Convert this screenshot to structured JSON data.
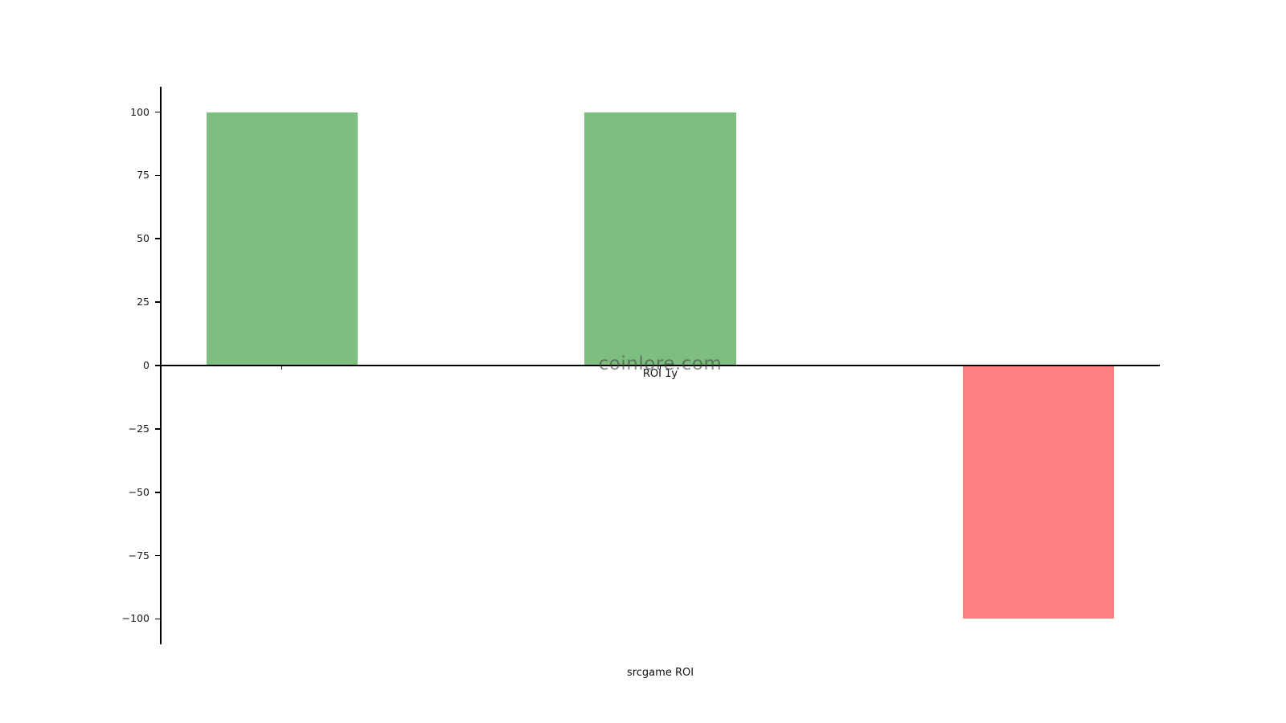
{
  "chart_data": {
    "type": "bar",
    "title": "",
    "xlabel": "srcgame ROI",
    "ylabel": "",
    "watermark": "coinlore.com",
    "categories": [
      "",
      "ROI 1y",
      ""
    ],
    "series": [
      {
        "name": "srcgame ROI",
        "values": [
          100,
          100,
          -100
        ],
        "colors": [
          "#7ebf80",
          "#7ebf80",
          "#ff8080"
        ]
      }
    ],
    "positive_color": "#7ebf80",
    "negative_color": "#ff8080",
    "axis_color": "#000000",
    "tick_text_color": "#1a1a1a",
    "watermark_color": "#464646",
    "yticks": [
      {
        "value": 100,
        "label": "100"
      },
      {
        "value": 75,
        "label": "75"
      },
      {
        "value": 50,
        "label": "50"
      },
      {
        "value": 25,
        "label": "25"
      },
      {
        "value": 0,
        "label": "0"
      },
      {
        "value": -25,
        "label": "−25"
      },
      {
        "value": -50,
        "label": "−50"
      },
      {
        "value": -75,
        "label": "−75"
      },
      {
        "value": -100,
        "label": "−100"
      }
    ],
    "layout": {
      "xlim": [
        -0.32,
        2.32
      ],
      "ylim": [
        -110,
        110
      ],
      "bar_width_units": 0.4,
      "grid": false,
      "legend": "none",
      "x_axis_position": "zero"
    }
  }
}
